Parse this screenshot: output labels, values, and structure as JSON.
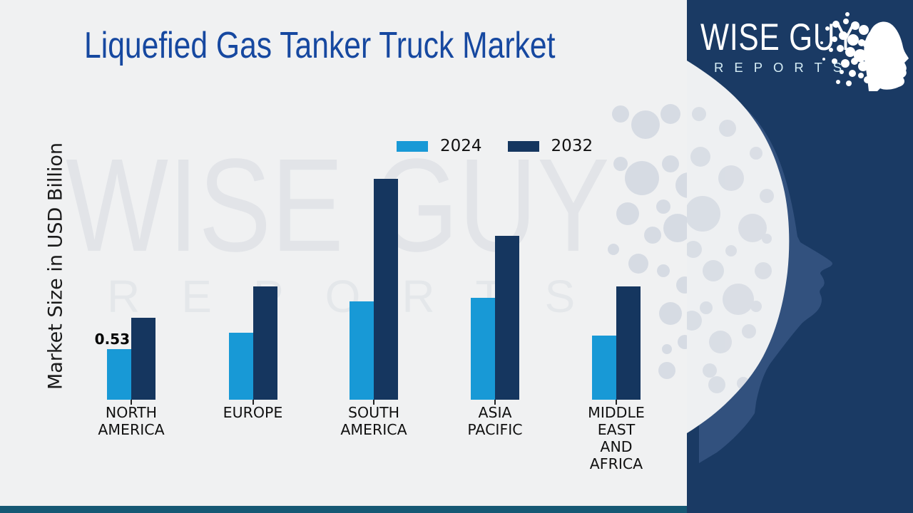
{
  "chart_data": {
    "type": "bar",
    "title": "Liquefied Gas Tanker Truck Market",
    "ylabel": "Market Size in USD Billion",
    "xlabel": "",
    "categories": [
      "NORTH AMERICA",
      "EUROPE",
      "SOUTH AMERICA",
      "ASIA PACIFIC",
      "MIDDLE EAST AND AFRICA"
    ],
    "label_lines": [
      [
        "NORTH",
        "AMERICA"
      ],
      [
        "EUROPE"
      ],
      [
        "SOUTH",
        "AMERICA"
      ],
      [
        "ASIA",
        "PACIFIC"
      ],
      [
        "MIDDLE",
        "EAST",
        "AND",
        "AFRICA"
      ]
    ],
    "series": [
      {
        "name": "2024",
        "color": "#1899d6",
        "values": [
          0.53,
          0.7,
          1.03,
          1.07,
          0.67
        ]
      },
      {
        "name": "2032",
        "color": "#15365f",
        "values": [
          0.86,
          1.19,
          2.31,
          1.72,
          1.19
        ]
      }
    ],
    "annotations": [
      {
        "text": "0.53",
        "category": "NORTH AMERICA",
        "series": "2024"
      }
    ],
    "legend_position": "top-center",
    "grid": false
  },
  "watermark": {
    "line1": "WISE GUY",
    "line2": "REPORTS"
  },
  "logo": {
    "brand": "WISE GUY",
    "sub": "REPORTS"
  },
  "colors": {
    "title": "#1648a0",
    "bar_2024": "#1899d6",
    "bar_2032": "#15365f",
    "panel_navy": "#1a3a64",
    "panel_face": "#32517e",
    "bottom_bar": "#165874",
    "watermark": "#d9dde3",
    "background": "#f0f1f2"
  }
}
